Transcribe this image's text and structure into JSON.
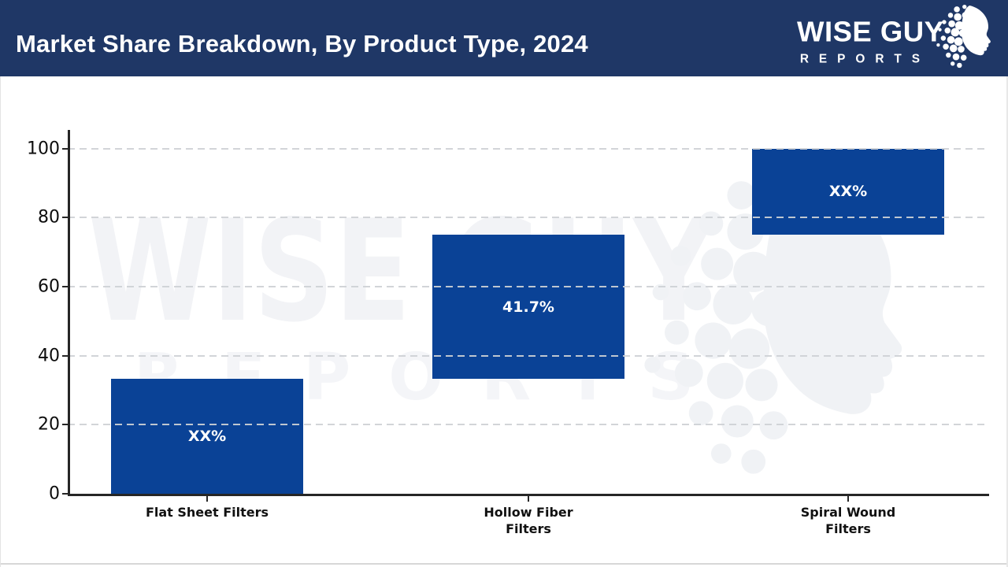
{
  "header": {
    "title": "Market Share Breakdown, By Product Type, 2024"
  },
  "logo": {
    "line1": "WISE GUY",
    "line2": "REPORTS"
  },
  "watermark": {
    "line1": "WISE GUY",
    "line2": "REPORTS"
  },
  "colors": {
    "header_bg": "#1f3766",
    "bar": "#0a4296",
    "bar_label": "#ffffff",
    "grid": "#d0d3d7",
    "axis": "#262626",
    "watermark": "#f2f3f6"
  },
  "chart_data": {
    "type": "bar",
    "subtype": "floating-waterfall",
    "title": "Market Share Breakdown, By Product Type, 2024",
    "categories": [
      "Flat Sheet Filters",
      "Hollow Fiber Filters",
      "Spiral Wound Filters"
    ],
    "category_label_lines": [
      [
        "Flat Sheet Filters"
      ],
      [
        "Hollow Fiber",
        "Filters"
      ],
      [
        "Spiral Wound",
        "Filters"
      ]
    ],
    "bars": [
      {
        "category": "Flat Sheet Filters",
        "start": 0,
        "end": 33.3,
        "value": 33.3,
        "label": "XX%"
      },
      {
        "category": "Hollow Fiber Filters",
        "start": 33.3,
        "end": 75,
        "value": 41.7,
        "label": "41.7%"
      },
      {
        "category": "Spiral Wound Filters",
        "start": 75,
        "end": 100,
        "value": 25,
        "label": "XX%"
      }
    ],
    "yticks": [
      0,
      20,
      40,
      60,
      80,
      100
    ],
    "ylim": [
      0,
      105
    ],
    "xlabel": "",
    "ylabel": "",
    "grid": "horizontal-dashed",
    "legend_position": "none"
  }
}
